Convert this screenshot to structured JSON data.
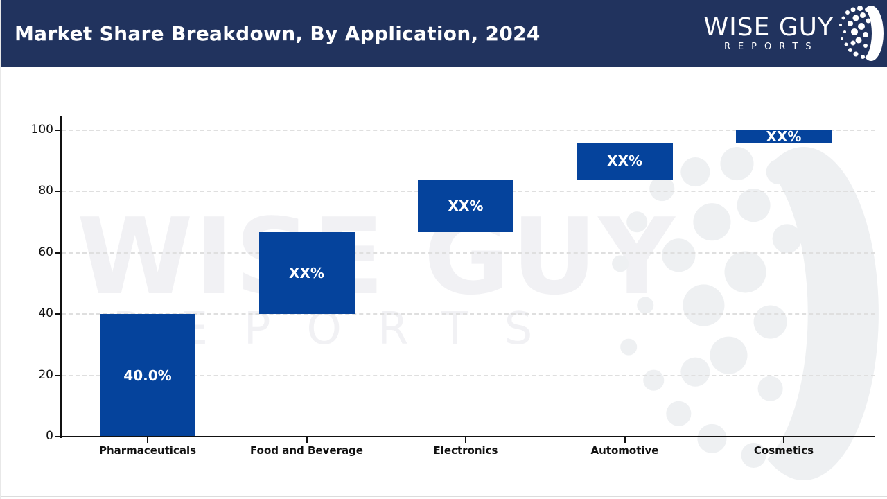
{
  "header": {
    "title": "Market Share Breakdown, By Application, 2024",
    "logo": {
      "line1": "WISE GUY",
      "line2": "REPORTS"
    }
  },
  "watermark": {
    "line1": "WISE GUY",
    "line2": "REPORTS"
  },
  "colors": {
    "header_bg": "#21335e",
    "bar": "#05439c",
    "bar_label": "#ffffff",
    "grid": "#dfdfdf",
    "axis": "#111111",
    "watermark": "#f1f1f4"
  },
  "chart_data": {
    "type": "bar",
    "subtype": "waterfall",
    "title": "Market Share Breakdown, By Application, 2024",
    "categories": [
      "Pharmaceuticals",
      "Food and Beverage",
      "Electronics",
      "Automotive",
      "Cosmetics"
    ],
    "segments": [
      {
        "category": "Pharmaceuticals",
        "start": 0,
        "end": 40,
        "label": "40.0%"
      },
      {
        "category": "Food and Beverage",
        "start": 40,
        "end": 66.7,
        "label": "XX%"
      },
      {
        "category": "Electronics",
        "start": 66.7,
        "end": 84,
        "label": "XX%"
      },
      {
        "category": "Automotive",
        "start": 84,
        "end": 96,
        "label": "XX%"
      },
      {
        "category": "Cosmetics",
        "start": 96,
        "end": 100,
        "label": "XX%"
      }
    ],
    "xlabel": "",
    "ylabel": "",
    "ylim": [
      0,
      104
    ],
    "yticks": [
      0,
      20,
      40,
      60,
      80,
      100
    ],
    "grid": "horizontal-dashed",
    "legend": "none",
    "bar_color": "#05439c",
    "bar_label_color": "#ffffff"
  }
}
